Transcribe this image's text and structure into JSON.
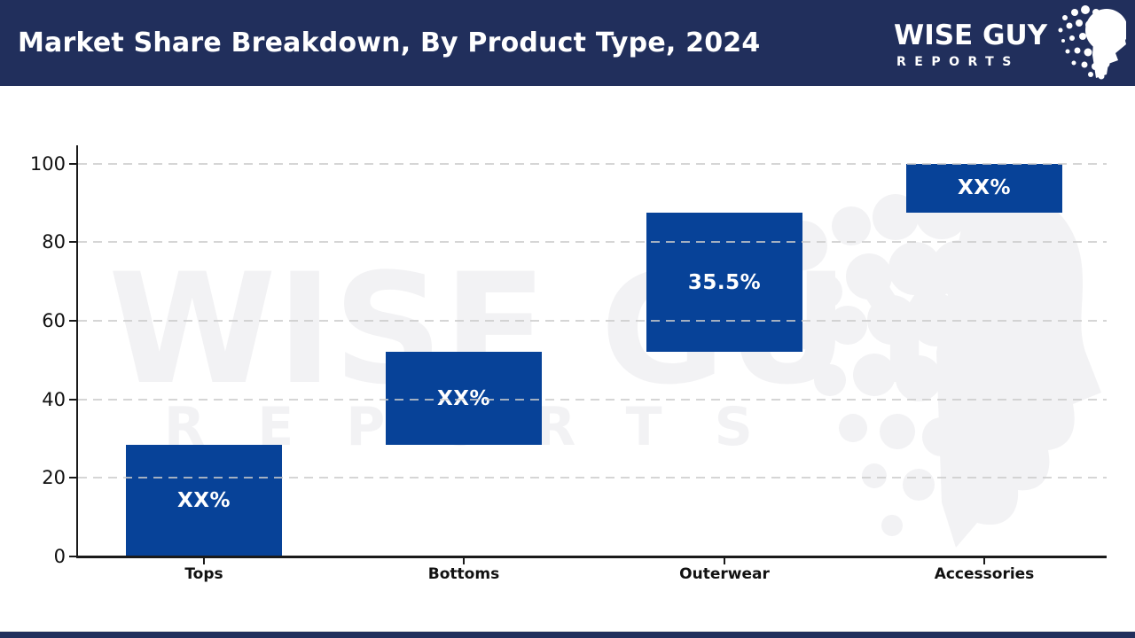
{
  "header": {
    "title": "Market Share Breakdown, By Product Type, 2024",
    "logo": {
      "line1": "WISE GUY",
      "line2": "REPORTS"
    }
  },
  "watermark": {
    "line1": "WISE GUY",
    "line2": "REPORTS"
  },
  "chart_data": {
    "type": "waterfall",
    "title": "Market Share Breakdown, By Product Type, 2024",
    "categories": [
      "Tops",
      "Bottoms",
      "Outerwear",
      "Accessories"
    ],
    "series": [
      {
        "name": "Tops",
        "start": 0,
        "end": 28.5,
        "label": "XX%"
      },
      {
        "name": "Bottoms",
        "start": 28.5,
        "end": 52,
        "label": "XX%"
      },
      {
        "name": "Outerwear",
        "start": 52,
        "end": 87.5,
        "label": "35.5%"
      },
      {
        "name": "Accessories",
        "start": 87.5,
        "end": 100,
        "label": "XX%"
      }
    ],
    "y_ticks": [
      0,
      20,
      40,
      60,
      80,
      100
    ],
    "ylim": [
      0,
      104.7
    ],
    "xlabel": "",
    "ylabel": "",
    "grid": "dashed-horizontal",
    "legend": "none",
    "bar_color": "#074298",
    "bar_label_color": "#ffffff"
  },
  "colors": {
    "header_bg": "#212f5c",
    "footer_bg": "#212f5c",
    "bar_blue": "#074298",
    "axis": "#1a1a1a",
    "gridline": "#cbcbcb",
    "watermark": "#f2f2f4"
  }
}
